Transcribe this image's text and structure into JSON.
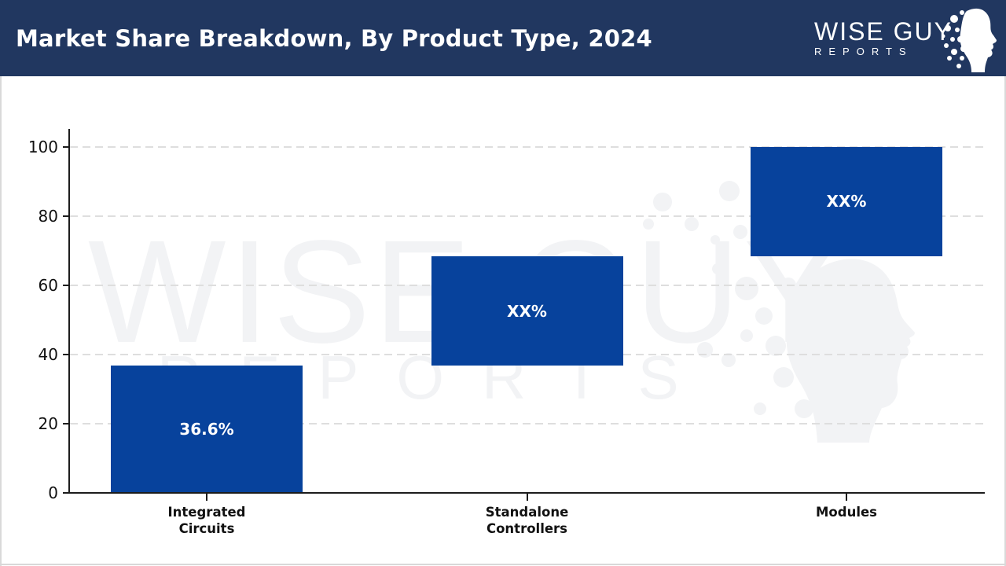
{
  "header": {
    "title": "Market Share Breakdown, By Product Type, 2024",
    "logo": {
      "line1": "WISE GUY",
      "line2": "REPORTS"
    }
  },
  "watermark": {
    "line1": "WISE GUY",
    "line2": "REPORTS"
  },
  "chart_data": {
    "type": "bar",
    "subtype": "waterfall",
    "title": "Market Share Breakdown, By Product Type, 2024",
    "categories": [
      "Integrated Circuits",
      "Standalone Controllers",
      "Modules"
    ],
    "category_lines": [
      [
        "Integrated",
        "Circuits"
      ],
      [
        "Standalone",
        "Controllers"
      ],
      [
        "Modules"
      ]
    ],
    "series": [
      {
        "name": "Integrated Circuits",
        "start": 0,
        "end": 36.6,
        "label": "36.6%"
      },
      {
        "name": "Standalone Controllers",
        "start": 36.6,
        "end": 68.3,
        "label": "XX%"
      },
      {
        "name": "Modules",
        "start": 68.3,
        "end": 100,
        "label": "XX%"
      }
    ],
    "xlabel": "",
    "ylabel": "",
    "ylim": [
      0,
      105
    ],
    "yticks": [
      0,
      20,
      40,
      60,
      80,
      100
    ],
    "grid": "horizontal-dashed",
    "legend": "none",
    "bar_color": "#07429c",
    "bar_label_color": "#ffffff"
  },
  "colors": {
    "header_bg": "#213760",
    "bar": "#07429c",
    "axis": "#1c1c1c",
    "gridline": "#dedede",
    "tick_label": "#111111",
    "watermark": "#f2f3f5",
    "frame_border": "#d9d9d9"
  }
}
